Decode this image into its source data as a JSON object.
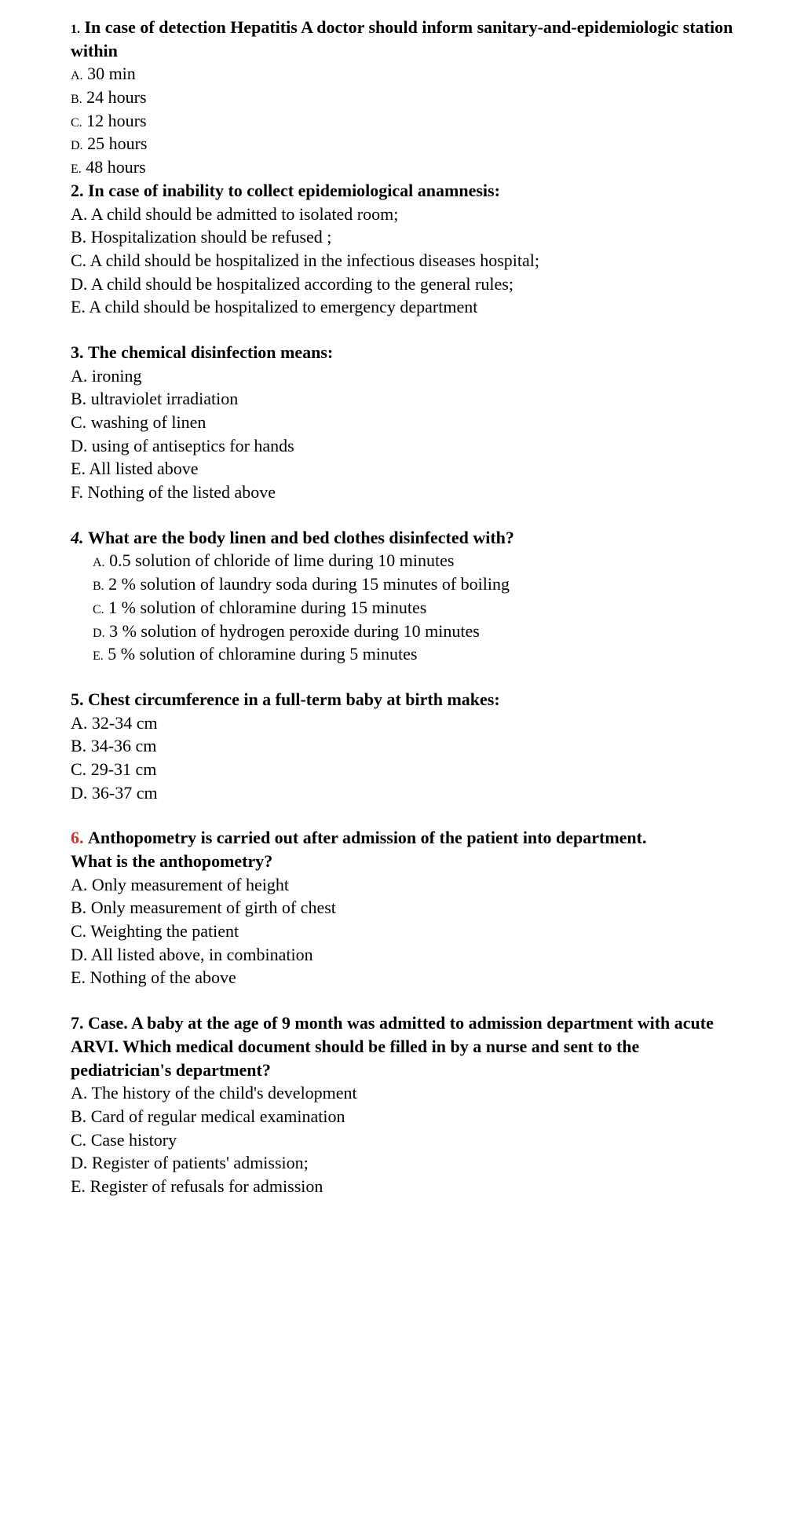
{
  "questions": [
    {
      "number": "1.",
      "number_small": true,
      "text_bold": "In case of detection Hepatitis A doctor should inform sanitary-and-epidemiologic station within",
      "text_regular": "",
      "number_red": false,
      "indent_options": false,
      "options": [
        {
          "label": "A.",
          "label_small": true,
          "text": "30 min"
        },
        {
          "label": "B.",
          "label_small": true,
          "text": "24 hours"
        },
        {
          "label": "C.",
          "label_small": true,
          "text": "12 hours"
        },
        {
          "label": "D.",
          "label_small": true,
          "text": "25 hours"
        },
        {
          "label": "E.",
          "label_small": true,
          "text": "48 hours"
        }
      ]
    },
    {
      "number": "2.",
      "number_small": false,
      "text_bold": "In case of inability to collect epidemiological anamnesis:",
      "text_regular": "",
      "number_red": false,
      "indent_options": false,
      "options": [
        {
          "label": "A.",
          "label_small": false,
          "text": "A child should be admitted to isolated room;"
        },
        {
          "label": "B.",
          "label_small": false,
          "text": "Hospitalization should be refused ;"
        },
        {
          "label": "C.",
          "label_small": false,
          "text": "A child should be hospitalized in the infectious diseases hospital;"
        },
        {
          "label": "D.",
          "label_small": false,
          "text": "A child should be hospitalized according to the general rules;"
        },
        {
          "label": "E.",
          "label_small": false,
          "text": "A child should be hospitalized to emergency department"
        }
      ]
    },
    {
      "number": "3.",
      "number_small": false,
      "text_bold": "The chemical disinfection means:",
      "text_regular": "",
      "number_red": false,
      "indent_options": false,
      "options": [
        {
          "label": "A.",
          "label_small": false,
          "text": "ironing"
        },
        {
          "label": "B.",
          "label_small": false,
          "text": "ultraviolet irradiation"
        },
        {
          "label": "C.",
          "label_small": false,
          "text": "washing of linen"
        },
        {
          "label": "D.",
          "label_small": false,
          "text": "using of antiseptics for hands"
        },
        {
          "label": "E.",
          "label_small": false,
          "text": "All listed above"
        },
        {
          "label": "F.",
          "label_small": false,
          "text": "Nothing of the listed above"
        }
      ]
    },
    {
      "number": "4.",
      "number_small": false,
      "number_italic": true,
      "text_bold": "What are the body linen and bed clothes disinfected with?",
      "text_regular": "",
      "number_red": false,
      "indent_options": true,
      "options": [
        {
          "label": "A.",
          "label_small": true,
          "text": "0.5 solution of chloride of lime during 10 minutes"
        },
        {
          "label": "B.",
          "label_small": true,
          "text": "2 % solution of laundry soda during 15 minutes of boiling"
        },
        {
          "label": "C.",
          "label_small": true,
          "text": "1 % solution of chloramine during 15 minutes"
        },
        {
          "label": "D.",
          "label_small": true,
          "text": "3 % solution of hydrogen peroxide during 10 minutes"
        },
        {
          "label": "E.",
          "label_small": true,
          "text": "5 % solution of chloramine during 5 minutes"
        }
      ]
    },
    {
      "number": "5.",
      "number_small": false,
      "text_bold": "Chest circumference in a full-term baby at birth makes:",
      "text_regular": "",
      "number_red": false,
      "indent_options": false,
      "options": [
        {
          "label": "A.",
          "label_small": false,
          "text": "32-34 cm"
        },
        {
          "label": "B.",
          "label_small": false,
          "text": "34-36 cm"
        },
        {
          "label": "C.",
          "label_small": false,
          "text": "29-31 cm"
        },
        {
          "label": "D.",
          "label_small": false,
          "text": "36-37 cm"
        }
      ]
    },
    {
      "number": "6.",
      "number_small": false,
      "text_bold": "Anthopometry is carried out after admission of the patient into department.",
      "text_bold2": "What is the anthopometry?",
      "text_regular": "",
      "number_red": true,
      "indent_options": false,
      "options": [
        {
          "label": "A.",
          "label_small": false,
          "text": "Only measurement of height"
        },
        {
          "label": "B.",
          "label_small": false,
          "text": "Only measurement of girth of chest"
        },
        {
          "label": "C.",
          "label_small": false,
          "text": "Weighting the patient"
        },
        {
          "label": "D.",
          "label_small": false,
          "text": "All listed above, in combination"
        },
        {
          "label": "E.",
          "label_small": false,
          "text": "Nothing of the above"
        }
      ]
    },
    {
      "number": "7.",
      "number_small": false,
      "text_bold": "Case. A baby at the age of 9 month was admitted to admission department with acute ARVI. Which medical document should be filled in by a nurse and sent to the pediatrician's department?",
      "text_regular": "",
      "number_red": false,
      "indent_options": false,
      "options": [
        {
          "label": "A.",
          "label_small": false,
          "text": "The history of the child's development"
        },
        {
          "label": "B.",
          "label_small": false,
          "text": "Card of regular medical examination"
        },
        {
          "label": "C.",
          "label_small": false,
          "text": "Case history"
        },
        {
          "label": "D.",
          "label_small": false,
          "text": "Register of patients' admission;"
        },
        {
          "label": "E.",
          "label_small": false,
          "text": "Register of refusals for admission"
        }
      ]
    }
  ]
}
